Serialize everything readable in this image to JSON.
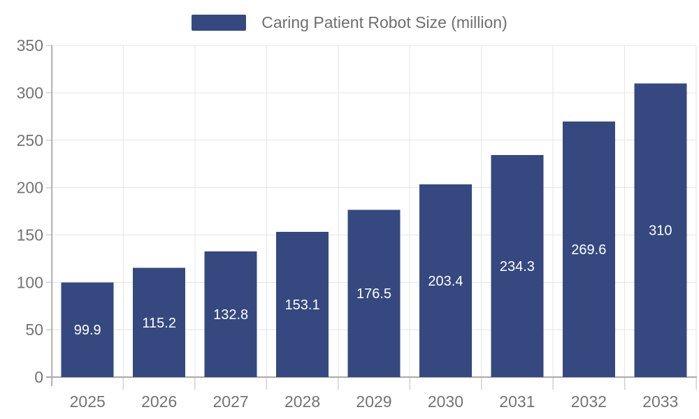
{
  "colors": {
    "bar": "#35487f",
    "grid": "#e5e5e8",
    "x_axis_line": "#a9a9a9",
    "y_axis_line": "#9a9a9a",
    "tick": "#d2d2da",
    "label_text": "#737373",
    "value_text": "#ffffff",
    "legend_text": "#6e6e6e"
  },
  "chart_data": {
    "type": "bar",
    "title": "Caring Patient Robot Size (million)",
    "categories": [
      "2025",
      "2026",
      "2027",
      "2028",
      "2029",
      "2030",
      "2031",
      "2032",
      "2033"
    ],
    "values": [
      99.9,
      115.2,
      132.8,
      153.1,
      176.5,
      203.4,
      234.3,
      269.6,
      310
    ],
    "value_labels": [
      "99.9",
      "115.2",
      "132.8",
      "153.1",
      "176.5",
      "203.4",
      "234.3",
      "269.6",
      "310"
    ],
    "xlabel": "",
    "ylabel": "",
    "ylim": [
      0,
      350
    ],
    "y_ticks": [
      0,
      50,
      100,
      150,
      200,
      250,
      300,
      350
    ],
    "grid": true,
    "legend_position": "top",
    "value_label_position": "inside-center"
  }
}
